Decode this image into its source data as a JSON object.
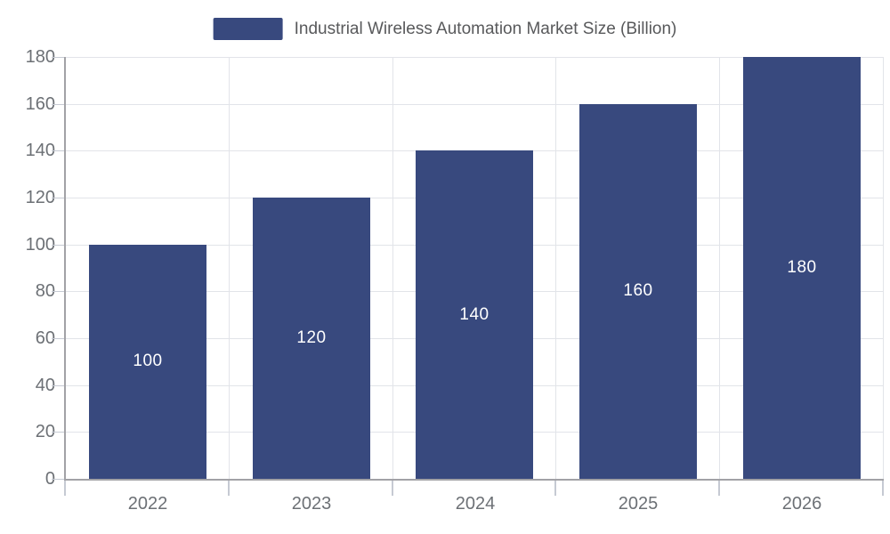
{
  "chart_data": {
    "type": "bar",
    "title": "Industrial Wireless Automation Market Size (Billion)",
    "categories": [
      "2022",
      "2023",
      "2024",
      "2025",
      "2026"
    ],
    "values": [
      100,
      120,
      140,
      160,
      180
    ],
    "xlabel": "",
    "ylabel": "",
    "ylim": [
      0,
      180
    ],
    "yticks": [
      0,
      20,
      40,
      60,
      80,
      100,
      120,
      140,
      160,
      180
    ],
    "grid": true,
    "legend_position": "top-center",
    "bar_label_position": "inside-center",
    "colors": {
      "bar": "#38497E",
      "bar_label": "#FFFFFF",
      "axis_line": "#A2A2A6",
      "tick_mark": "#C6CAD3",
      "gridline": "#E2E4E9",
      "axis_label": "#6C7075",
      "legend_text": "#58595B"
    }
  }
}
